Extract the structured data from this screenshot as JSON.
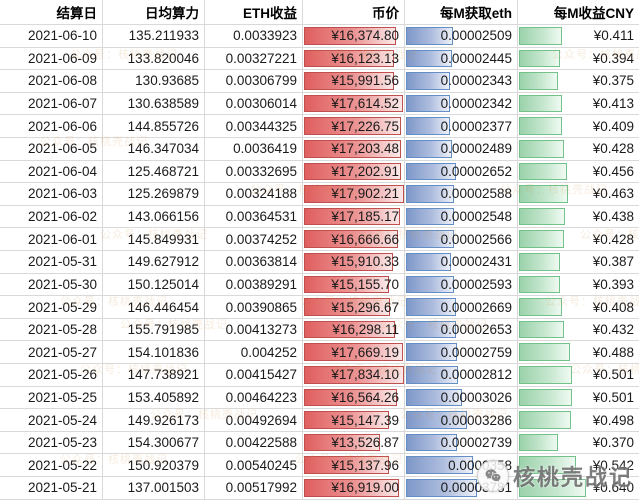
{
  "table": {
    "headers": [
      {
        "label": "结算日"
      },
      {
        "label": "日均算力"
      },
      {
        "label": "ETH收益"
      },
      {
        "label": "币价"
      },
      {
        "label": "每M获取eth"
      },
      {
        "label": "每M收益CNY"
      }
    ],
    "rows": [
      {
        "date": "2021-06-10",
        "hashrate": "135.211933",
        "eth": "0.0033923",
        "price": "¥16,374.80",
        "eth_per_m": "0.00002509",
        "cny_per_m": "¥0.411"
      },
      {
        "date": "2021-06-09",
        "hashrate": "133.820046",
        "eth": "0.00327221",
        "price": "¥16,123.13",
        "eth_per_m": "0.00002445",
        "cny_per_m": "¥0.394"
      },
      {
        "date": "2021-06-08",
        "hashrate": "130.93685",
        "eth": "0.00306799",
        "price": "¥15,991.56",
        "eth_per_m": "0.00002343",
        "cny_per_m": "¥0.375"
      },
      {
        "date": "2021-06-07",
        "hashrate": "130.638589",
        "eth": "0.00306014",
        "price": "¥17,614.52",
        "eth_per_m": "0.00002342",
        "cny_per_m": "¥0.413"
      },
      {
        "date": "2021-06-06",
        "hashrate": "144.855726",
        "eth": "0.00344325",
        "price": "¥17,226.75",
        "eth_per_m": "0.00002377",
        "cny_per_m": "¥0.409"
      },
      {
        "date": "2021-06-05",
        "hashrate": "146.347034",
        "eth": "0.0036419",
        "price": "¥17,203.48",
        "eth_per_m": "0.00002489",
        "cny_per_m": "¥0.428"
      },
      {
        "date": "2021-06-04",
        "hashrate": "125.468721",
        "eth": "0.00332695",
        "price": "¥17,202.91",
        "eth_per_m": "0.00002652",
        "cny_per_m": "¥0.456"
      },
      {
        "date": "2021-06-03",
        "hashrate": "125.269879",
        "eth": "0.00324188",
        "price": "¥17,902.21",
        "eth_per_m": "0.00002588",
        "cny_per_m": "¥0.463"
      },
      {
        "date": "2021-06-02",
        "hashrate": "143.066156",
        "eth": "0.00364531",
        "price": "¥17,185.17",
        "eth_per_m": "0.00002548",
        "cny_per_m": "¥0.438"
      },
      {
        "date": "2021-06-01",
        "hashrate": "145.849931",
        "eth": "0.00374252",
        "price": "¥16,666.66",
        "eth_per_m": "0.00002566",
        "cny_per_m": "¥0.428"
      },
      {
        "date": "2021-05-31",
        "hashrate": "149.627912",
        "eth": "0.00363814",
        "price": "¥15,910.33",
        "eth_per_m": "0.00002431",
        "cny_per_m": "¥0.387"
      },
      {
        "date": "2021-05-30",
        "hashrate": "150.125014",
        "eth": "0.00389291",
        "price": "¥15,155.70",
        "eth_per_m": "0.00002593",
        "cny_per_m": "¥0.393"
      },
      {
        "date": "2021-05-29",
        "hashrate": "146.446454",
        "eth": "0.00390865",
        "price": "¥15,296.67",
        "eth_per_m": "0.00002669",
        "cny_per_m": "¥0.408"
      },
      {
        "date": "2021-05-28",
        "hashrate": "155.791985",
        "eth": "0.00413273",
        "price": "¥16,298.11",
        "eth_per_m": "0.00002653",
        "cny_per_m": "¥0.432"
      },
      {
        "date": "2021-05-27",
        "hashrate": "154.101836",
        "eth": "0.004252",
        "price": "¥17,669.19",
        "eth_per_m": "0.00002759",
        "cny_per_m": "¥0.488"
      },
      {
        "date": "2021-05-26",
        "hashrate": "147.738921",
        "eth": "0.00415427",
        "price": "¥17,834.10",
        "eth_per_m": "0.00002812",
        "cny_per_m": "¥0.501"
      },
      {
        "date": "2021-05-25",
        "hashrate": "153.405892",
        "eth": "0.00464223",
        "price": "¥16,564.26",
        "eth_per_m": "0.00003026",
        "cny_per_m": "¥0.501"
      },
      {
        "date": "2021-05-24",
        "hashrate": "149.926173",
        "eth": "0.00492694",
        "price": "¥15,147.39",
        "eth_per_m": "0.00003286",
        "cny_per_m": "¥0.498"
      },
      {
        "date": "2021-05-23",
        "hashrate": "154.300677",
        "eth": "0.00422588",
        "price": "¥13,526.87",
        "eth_per_m": "0.00002739",
        "cny_per_m": "¥0.370"
      },
      {
        "date": "2021-05-22",
        "hashrate": "150.920379",
        "eth": "0.00540245",
        "price": "¥15,137.96",
        "eth_per_m": "0.0000358",
        "cny_per_m": "¥0.542"
      },
      {
        "date": "2021-05-21",
        "hashrate": "137.001503",
        "eth": "0.00517992",
        "price": "¥16,919.00",
        "eth_per_m": "0.00003781",
        "cny_per_m": "¥0.640"
      }
    ]
  },
  "bars": {
    "price_scale_max": 18000,
    "eth_per_m_scale_max": 6e-05,
    "cny_scale_max": 1.15,
    "price_border_color": "#c0504d",
    "eth_per_m_border_color": "#638ec6",
    "cny_border_color": "#74c28b"
  },
  "watermark": {
    "tile_text": "公众号：核桃壳战记",
    "corner_text": "核桃壳战记"
  }
}
